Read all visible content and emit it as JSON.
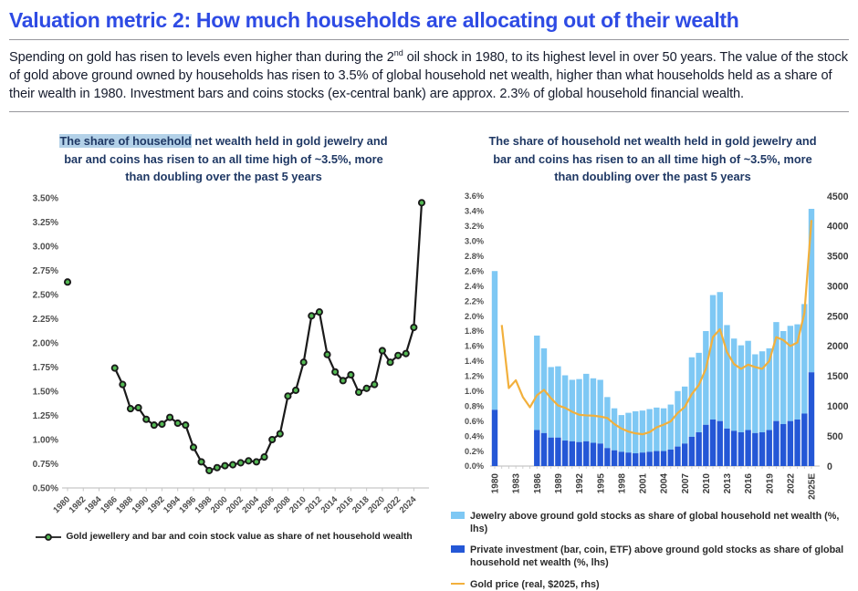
{
  "header": {
    "title": "Valuation metric 2: How much households are allocating out of their wealth"
  },
  "intro": {
    "part1": "Spending on gold has risen to levels even higher than during the 2",
    "sup": "nd",
    "part2": " oil shock in 1980, to its highest level in over 50 years. The value of the stock of gold above ground owned by households has risen to 3.5% of global household net wealth, higher than what households held as a share of their wealth in 1980. Investment bars and coins stocks (ex-central bank) are approx. 2.3% of global household financial wealth."
  },
  "colors": {
    "title_blue": "#2e4be4",
    "highlight": "#b3d1e8",
    "chart_title_navy": "#1f3864",
    "line": "#1a1a1a",
    "marker_fill": "#53b953",
    "bar_light": "#7ec8f4",
    "bar_dark": "#2457d6",
    "gold_line": "#f2b03c",
    "axis_gray": "#c6c6c6"
  },
  "charts": {
    "left": {
      "title_highlight": "The share of household",
      "title_rest": " net wealth held in gold jewelry and bar and coins has risen to an all time high of ~3.5%, more than doubling over the past 5 years",
      "legend": "Gold jewellery and bar and coin stock value as share of net household wealth"
    },
    "right": {
      "title": "The share of household net wealth held in gold jewelry and bar and coins has risen to an all time high of ~3.5%, more than doubling over the past 5 years",
      "legend": [
        "Jewelry above ground gold stocks as share of global household net wealth (%, lhs)",
        "Private investment (bar, coin, ETF) above ground gold stocks as share of global household net wealth (%, lhs)",
        "Gold price (real, $2025, rhs)"
      ]
    }
  },
  "chart_data": [
    {
      "type": "line",
      "title": "The share of household net wealth held in gold jewelry and bar and coins has risen to an all time high of ~3.5%, more than doubling over the past 5 years",
      "legend": "Gold jewellery and bar and coin stock value as share of net household wealth",
      "ylim": [
        0.5,
        3.5
      ],
      "ytick_step": 0.25,
      "xlim": [
        1980,
        2025
      ],
      "xticks": [
        1980,
        1982,
        1984,
        1986,
        1988,
        1990,
        1992,
        1994,
        1996,
        1998,
        2000,
        2002,
        2004,
        2006,
        2008,
        2010,
        2012,
        2014,
        2016,
        2018,
        2020,
        2022,
        2024
      ],
      "isolated_point": {
        "x": 1980,
        "y": 2.63
      },
      "x": [
        1986,
        1987,
        1988,
        1989,
        1990,
        1991,
        1992,
        1993,
        1994,
        1995,
        1996,
        1997,
        1998,
        1999,
        2000,
        2001,
        2002,
        2003,
        2004,
        2005,
        2006,
        2007,
        2008,
        2009,
        2010,
        2011,
        2012,
        2013,
        2014,
        2015,
        2016,
        2017,
        2018,
        2019,
        2020,
        2021,
        2022,
        2023,
        2024,
        2025
      ],
      "y": [
        1.74,
        1.57,
        1.32,
        1.33,
        1.21,
        1.15,
        1.16,
        1.23,
        1.17,
        1.15,
        0.92,
        0.77,
        0.68,
        0.71,
        0.73,
        0.74,
        0.76,
        0.78,
        0.77,
        0.82,
        1.0,
        1.06,
        1.45,
        1.51,
        1.8,
        2.28,
        2.32,
        1.88,
        1.7,
        1.61,
        1.67,
        1.49,
        1.53,
        1.57,
        1.92,
        1.8,
        1.87,
        1.89,
        2.16,
        3.45
      ]
    },
    {
      "type": "bar",
      "subtype": "stacked-with-line-overlay",
      "title": "The share of household net wealth held in gold jewelry and bar and coins has risen to an all time high of ~3.5%, more than doubling over the past 5 years",
      "categories": [
        "1980",
        "1986",
        "1987",
        "1988",
        "1989",
        "1990",
        "1991",
        "1992",
        "1993",
        "1994",
        "1995",
        "1996",
        "1997",
        "1998",
        "1999",
        "2000",
        "2001",
        "2002",
        "2003",
        "2004",
        "2005",
        "2006",
        "2007",
        "2008",
        "2009",
        "2010",
        "2011",
        "2012",
        "2013",
        "2014",
        "2015",
        "2016",
        "2017",
        "2018",
        "2019",
        "2020",
        "2021",
        "2022",
        "2023",
        "2024",
        "2025E"
      ],
      "series": [
        {
          "name": "Jewelry above ground gold stocks as share of global household net wealth (%, lhs)",
          "color_key": "bar_light",
          "values": [
            1.85,
            1.26,
            1.13,
            0.94,
            0.95,
            0.87,
            0.82,
            0.84,
            0.9,
            0.86,
            0.85,
            0.68,
            0.56,
            0.49,
            0.53,
            0.56,
            0.56,
            0.57,
            0.58,
            0.57,
            0.6,
            0.74,
            0.76,
            1.06,
            1.06,
            1.25,
            1.66,
            1.72,
            1.38,
            1.23,
            1.16,
            1.19,
            1.05,
            1.08,
            1.09,
            1.32,
            1.24,
            1.27,
            1.27,
            1.46,
            2.18
          ]
        },
        {
          "name": "Private investment (bar, coin, ETF) above ground gold stocks as share of global household net wealth (%, lhs)",
          "color_key": "bar_dark",
          "values": [
            0.75,
            0.48,
            0.44,
            0.38,
            0.38,
            0.34,
            0.33,
            0.32,
            0.33,
            0.31,
            0.3,
            0.24,
            0.21,
            0.19,
            0.18,
            0.17,
            0.18,
            0.19,
            0.2,
            0.2,
            0.22,
            0.26,
            0.3,
            0.39,
            0.45,
            0.55,
            0.62,
            0.6,
            0.5,
            0.47,
            0.45,
            0.48,
            0.44,
            0.45,
            0.48,
            0.6,
            0.56,
            0.6,
            0.62,
            0.7,
            1.25
          ]
        }
      ],
      "line_series": {
        "name": "Gold price (real, $2025, rhs)",
        "axis": "right",
        "color_key": "gold_line",
        "x": [
          1981,
          1982,
          1983,
          1984,
          1985,
          1986,
          1987,
          1988,
          1989,
          1990,
          1991,
          1992,
          1993,
          1994,
          1995,
          1996,
          1997,
          1998,
          1999,
          2000,
          2001,
          2002,
          2003,
          2004,
          2005,
          2006,
          2007,
          2008,
          2009,
          2010,
          2011,
          2012,
          2013,
          2014,
          2015,
          2016,
          2017,
          2018,
          2019,
          2020,
          2021,
          2022,
          2023,
          2024,
          2025
        ],
        "values": [
          2350,
          1300,
          1430,
          1150,
          980,
          1180,
          1270,
          1130,
          1010,
          970,
          905,
          855,
          845,
          840,
          825,
          800,
          700,
          625,
          575,
          545,
          530,
          565,
          645,
          690,
          745,
          885,
          985,
          1200,
          1350,
          1620,
          2150,
          2280,
          1900,
          1700,
          1620,
          1690,
          1650,
          1620,
          1750,
          2150,
          2100,
          2000,
          2060,
          2550,
          4100
        ]
      },
      "axis_left": {
        "min": 0,
        "max": 3.6,
        "step": 0.2,
        "format": "0.0%"
      },
      "axis_right": {
        "min": 0,
        "max": 4500,
        "step": 500
      },
      "xlim": [
        1980,
        2025
      ],
      "xticks": [
        "1980",
        "1983",
        "1986",
        "1989",
        "1992",
        "1995",
        "1998",
        "2001",
        "2004",
        "2007",
        "2010",
        "2013",
        "2016",
        "2019",
        "2022",
        "2025E"
      ]
    }
  ]
}
